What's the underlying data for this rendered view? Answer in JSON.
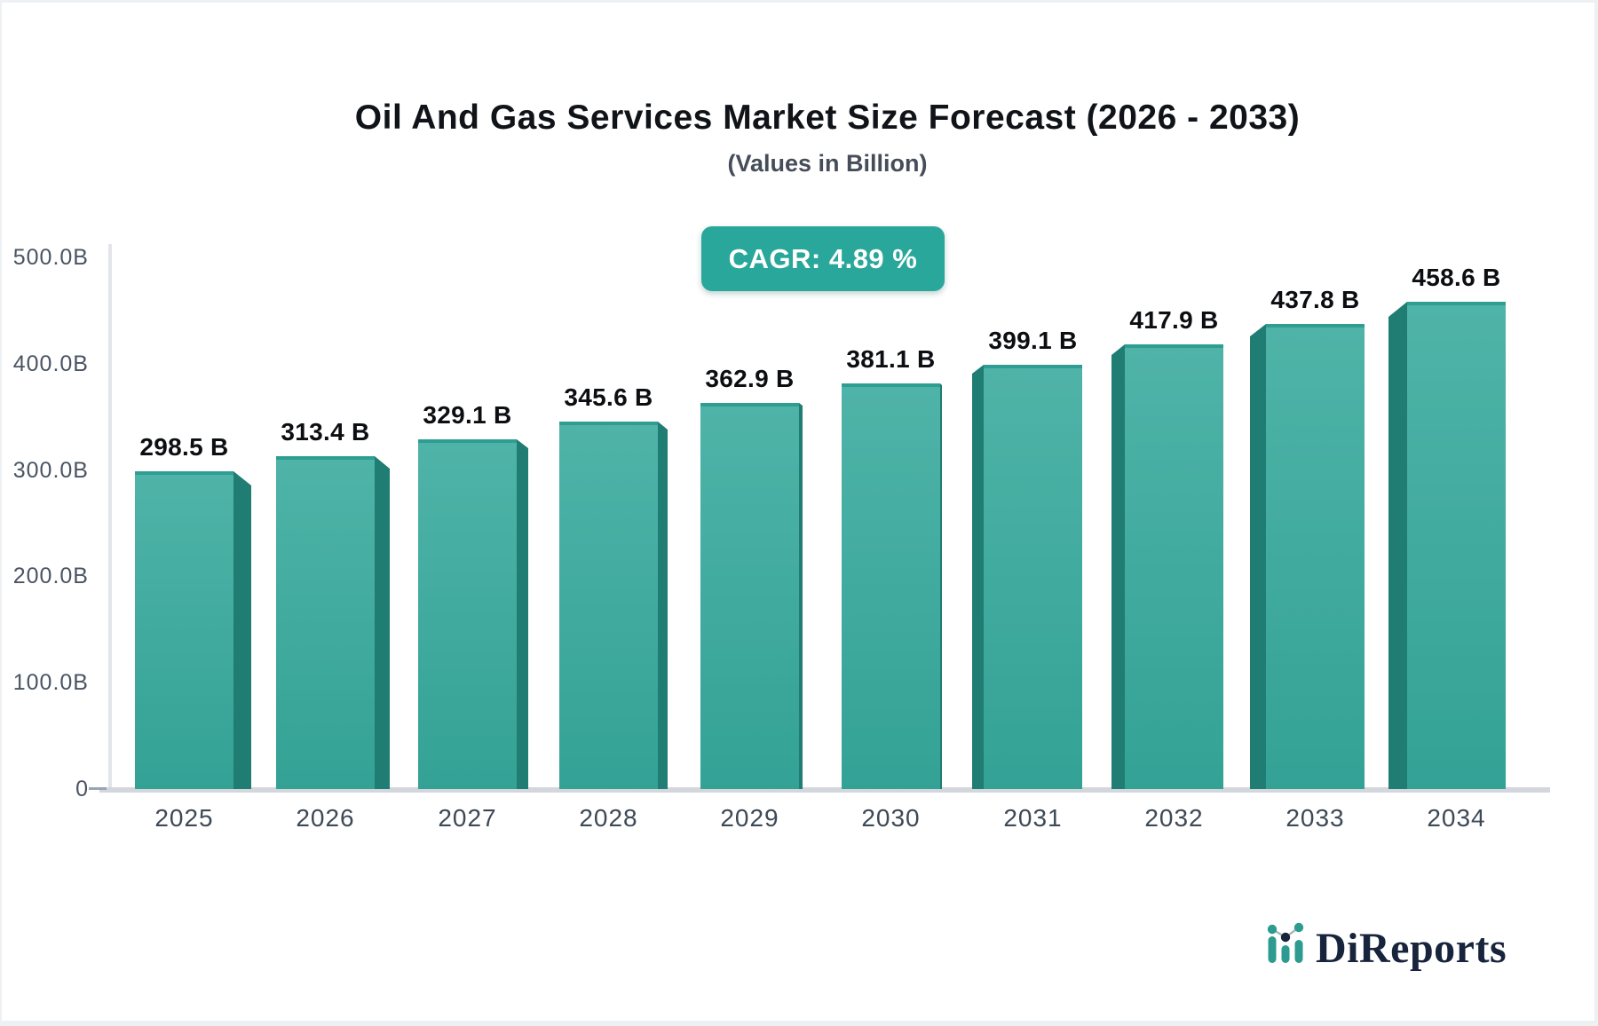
{
  "title": "Oil And Gas Services Market Size Forecast (2026 - 2033)",
  "subtitle": "(Values in Billion)",
  "badge": {
    "label": "CAGR: 4.89 %"
  },
  "brand": {
    "name": "DiReports",
    "icon": "mini-bar-chart-icon"
  },
  "chart_data": {
    "type": "bar",
    "title": "Oil And Gas Services Market Size Forecast (2026 - 2033)",
    "subtitle": "(Values in Billion)",
    "cagr_label": "CAGR: 4.89 %",
    "categories": [
      "2025",
      "2026",
      "2027",
      "2028",
      "2029",
      "2030",
      "2031",
      "2032",
      "2033",
      "2034"
    ],
    "values": [
      298.5,
      313.4,
      329.1,
      345.6,
      362.9,
      381.1,
      399.1,
      417.9,
      437.8,
      458.6
    ],
    "bar_labels": [
      "298.5 B",
      "313.4 B",
      "329.1 B",
      "345.6 B",
      "362.9 B",
      "381.1 B",
      "399.1 B",
      "417.9 B",
      "437.8 B",
      "458.6 B"
    ],
    "unit": "Billion",
    "y_ticks": [
      "500.0B",
      "400.0B",
      "300.0B",
      "200.0B",
      "100.0B",
      "0"
    ],
    "y_tick_values": [
      500,
      400,
      300,
      200,
      100,
      0
    ],
    "ylim": [
      0,
      500
    ],
    "grid": false,
    "legend": false,
    "bar_style": "3d-perspective",
    "colors": {
      "bar_face_top": "#4fb3a8",
      "bar_face_bottom": "#33a295",
      "bar_side": "#1f7d73",
      "bar_cap": "#2e9e93",
      "badge_bg": "#2aa79b",
      "axis_line": "#e2e5ea",
      "baseline": "#d3d6dc",
      "value_text": "#0c0e11",
      "tick_text": "#4a5463",
      "year_text": "#3d4956",
      "brand_navy": "#17243c",
      "brand_teal": "#2e9b90"
    }
  }
}
